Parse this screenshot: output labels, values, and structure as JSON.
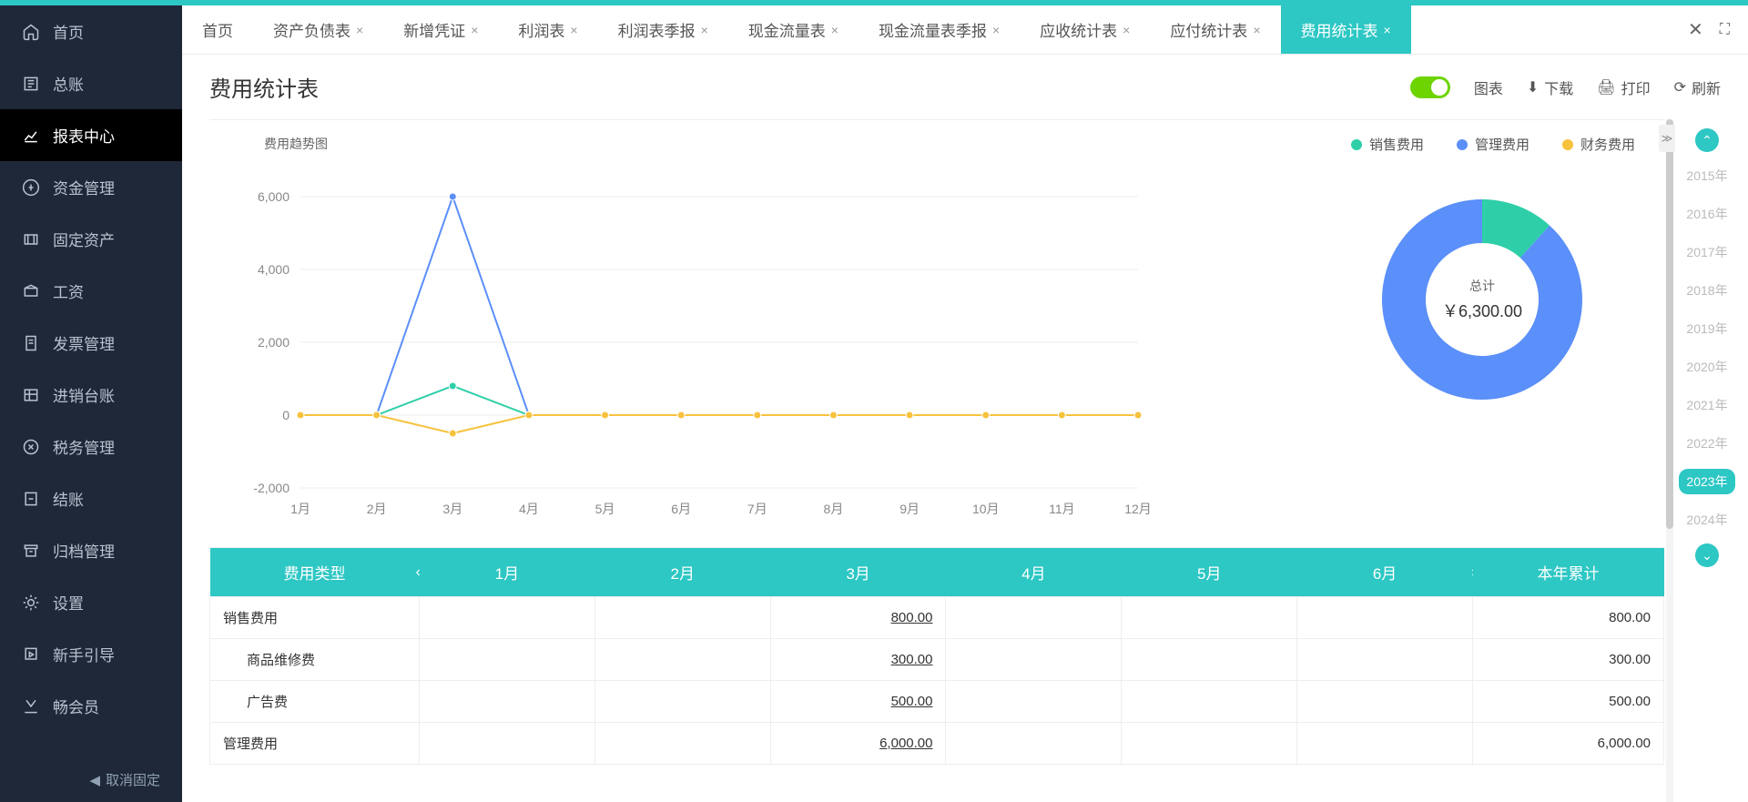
{
  "sidebar": {
    "items": [
      {
        "label": "首页",
        "icon": "home"
      },
      {
        "label": "总账",
        "icon": "ledger"
      },
      {
        "label": "报表中心",
        "icon": "chart",
        "active": true
      },
      {
        "label": "资金管理",
        "icon": "money"
      },
      {
        "label": "固定资产",
        "icon": "asset"
      },
      {
        "label": "工资",
        "icon": "salary"
      },
      {
        "label": "发票管理",
        "icon": "invoice"
      },
      {
        "label": "进销台账",
        "icon": "inventory"
      },
      {
        "label": "税务管理",
        "icon": "tax"
      },
      {
        "label": "结账",
        "icon": "close"
      },
      {
        "label": "归档管理",
        "icon": "archive"
      },
      {
        "label": "设置",
        "icon": "settings"
      },
      {
        "label": "新手引导",
        "icon": "guide"
      },
      {
        "label": "畅会员",
        "icon": "vip"
      }
    ],
    "footer": "取消固定"
  },
  "tabs": {
    "items": [
      {
        "label": "首页",
        "closable": false
      },
      {
        "label": "资产负债表",
        "closable": true
      },
      {
        "label": "新增凭证",
        "closable": true
      },
      {
        "label": "利润表",
        "closable": true
      },
      {
        "label": "利润表季报",
        "closable": true
      },
      {
        "label": "现金流量表",
        "closable": true
      },
      {
        "label": "现金流量表季报",
        "closable": true
      },
      {
        "label": "应收统计表",
        "closable": true
      },
      {
        "label": "应付统计表",
        "closable": true
      },
      {
        "label": "费用统计表",
        "closable": true,
        "active": true
      }
    ]
  },
  "page": {
    "title": "费用统计表",
    "toggle_label": "图表",
    "download": "下载",
    "print": "打印",
    "refresh": "刷新"
  },
  "chart": {
    "title": "费用趋势图",
    "type": "line",
    "x_categories": [
      "1月",
      "2月",
      "3月",
      "4月",
      "5月",
      "6月",
      "7月",
      "8月",
      "9月",
      "10月",
      "11月",
      "12月"
    ],
    "y_ticks": [
      -2000,
      0,
      2000,
      4000,
      6000
    ],
    "y_tick_labels": [
      "-2,000",
      "0",
      "2,000",
      "4,000",
      "6,000"
    ],
    "ylim": [
      -2000,
      6500
    ],
    "series": [
      {
        "name": "销售费用",
        "color": "#2ecfa8",
        "values": [
          0,
          0,
          800,
          0,
          0,
          0,
          0,
          0,
          0,
          0,
          0,
          0
        ]
      },
      {
        "name": "管理费用",
        "color": "#5b8ff9",
        "values": [
          0,
          0,
          6000,
          0,
          0,
          0,
          0,
          0,
          0,
          0,
          0,
          0
        ]
      },
      {
        "name": "财务费用",
        "color": "#f7c23e",
        "values": [
          0,
          0,
          -500,
          0,
          0,
          0,
          0,
          0,
          0,
          0,
          0,
          0
        ]
      }
    ],
    "grid_color": "#eeeeee",
    "axis_color": "#cccccc",
    "background_color": "#ffffff",
    "marker_radius": 4,
    "line_width": 2
  },
  "donut": {
    "center_label": "总计",
    "center_value": "￥6,300.00",
    "slices": [
      {
        "label": "销售费用",
        "value": 800,
        "color": "#2ecfa8"
      },
      {
        "label": "管理费用",
        "value": 6000,
        "color": "#5b8ff9"
      },
      {
        "label": "财务费用",
        "value": -500,
        "color": "#f7c23e"
      }
    ],
    "inner_radius": 62,
    "outer_radius": 110
  },
  "table": {
    "header_type": "费用类型",
    "months": [
      "1月",
      "2月",
      "3月",
      "4月",
      "5月",
      "6月"
    ],
    "total_col": "本年累计",
    "rows": [
      {
        "name": "销售费用",
        "indent": false,
        "m": [
          "",
          "",
          "800.00",
          "",
          "",
          ""
        ],
        "total": "800.00",
        "ul": true
      },
      {
        "name": "商品维修费",
        "indent": true,
        "m": [
          "",
          "",
          "300.00",
          "",
          "",
          ""
        ],
        "total": "300.00",
        "ul": true
      },
      {
        "name": "广告费",
        "indent": true,
        "m": [
          "",
          "",
          "500.00",
          "",
          "",
          ""
        ],
        "total": "500.00",
        "ul": true
      },
      {
        "name": "管理费用",
        "indent": false,
        "m": [
          "",
          "",
          "6,000.00",
          "",
          "",
          ""
        ],
        "total": "6,000.00",
        "ul": true
      }
    ],
    "header_bg": "#2dc7c4",
    "header_color": "#ffffff"
  },
  "years": {
    "list": [
      "2015年",
      "2016年",
      "2017年",
      "2018年",
      "2019年",
      "2020年",
      "2021年",
      "2022年",
      "2023年",
      "2024年"
    ],
    "active": "2023年"
  },
  "colors": {
    "primary": "#2dc7c4",
    "sidebar_bg": "#1e2838"
  }
}
